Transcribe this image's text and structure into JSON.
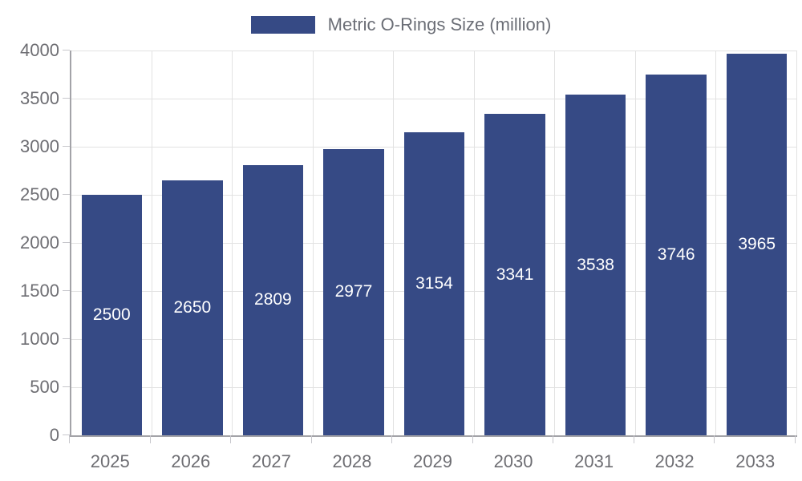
{
  "legend": {
    "label": "Metric O-Rings Size (million)"
  },
  "chart_data": {
    "type": "bar",
    "title": "",
    "series_name": "Metric O-Rings Size (million)",
    "categories": [
      "2025",
      "2026",
      "2027",
      "2028",
      "2029",
      "2030",
      "2031",
      "2032",
      "2033"
    ],
    "values": [
      2500,
      2650,
      2809,
      2977,
      3154,
      3341,
      3538,
      3746,
      3965
    ],
    "bar_labels": [
      2500,
      2650,
      2809,
      2977,
      3154,
      3341,
      3538,
      3746,
      3965
    ],
    "bar_label_position": "inside-center",
    "xlabel": "",
    "ylabel": "",
    "ylim": [
      0,
      4000
    ],
    "yticks": [
      0,
      500,
      1000,
      1500,
      2000,
      2500,
      3000,
      3500,
      4000
    ],
    "grid": "on",
    "legend_position": "top-center",
    "colors": {
      "bar": "#364A85",
      "bar_value_text": "#FFFFFF",
      "gridline": "#E2E2E2",
      "axis_line": "#A3A3A8",
      "tick_mark": "#C7C7CC",
      "axis_label_text": "#6E6E73",
      "legend_text": "#6B6E76",
      "background": "#FFFFFF"
    }
  }
}
